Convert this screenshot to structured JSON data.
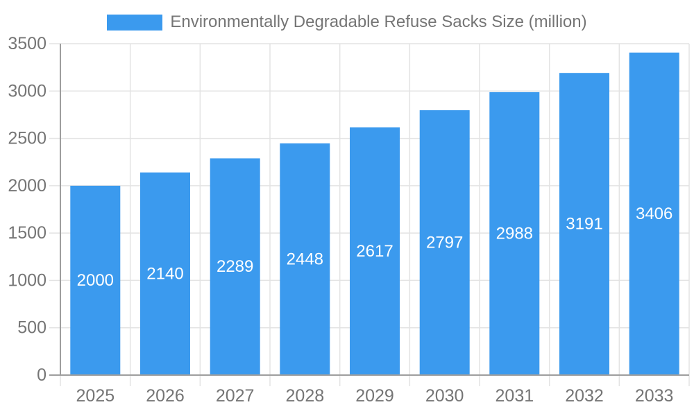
{
  "chart_data": {
    "type": "bar",
    "legend_label": "Environmentally Degradable Refuse Sacks Size (million)",
    "categories": [
      "2025",
      "2026",
      "2027",
      "2028",
      "2029",
      "2030",
      "2031",
      "2032",
      "2033"
    ],
    "values": [
      2000,
      2140,
      2289,
      2448,
      2617,
      2797,
      2988,
      3191,
      3406
    ],
    "ylim": [
      0,
      3500
    ],
    "ytick_step": 500,
    "ytick_labels": [
      "0",
      "500",
      "1000",
      "1500",
      "2000",
      "2500",
      "3000",
      "3500"
    ],
    "legend_position": "top-center",
    "grid": true,
    "bar_labels_inside": true,
    "colors": {
      "bar": "#3B9AEE",
      "bar_label": "#FFFFFF",
      "axis_text": "#757575",
      "grid_line": "#E3E3E3",
      "axis_line": "#9E9E9E",
      "background": "#FFFFFF"
    }
  }
}
